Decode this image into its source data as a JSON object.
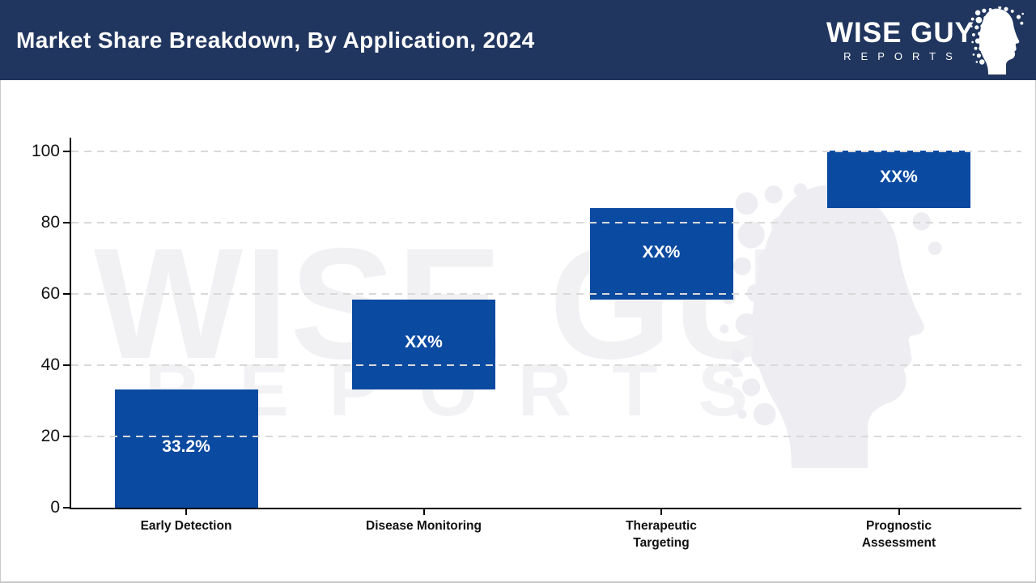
{
  "header": {
    "title": "Market Share Breakdown, By Application, 2024",
    "logo": {
      "line1": "WISE GUY",
      "line2": "REPORTS"
    }
  },
  "watermark": {
    "line1": "WISE GUY",
    "line2": "REPORTS"
  },
  "colors": {
    "header_bg": "#21365f",
    "bar": "#0b4aa1",
    "bar_label": "#ffffff",
    "gridline": "#d9d9d9",
    "watermark": "#f1f1f4",
    "axis": "#000000",
    "tick_text": "#111111"
  },
  "chart_data": {
    "type": "bar",
    "variant": "waterfall",
    "title": "Market Share Breakdown, By Application, 2024",
    "categories": [
      "Early Detection",
      "Disease Monitoring",
      "Therapeutic Targeting",
      "Prognostic Assessment"
    ],
    "category_label_lines": [
      [
        "Early Detection"
      ],
      [
        "Disease Monitoring"
      ],
      [
        "Therapeutic",
        "Targeting"
      ],
      [
        "Prognostic",
        "Assessment"
      ]
    ],
    "segments": [
      {
        "category": "Early Detection",
        "start": 0,
        "end": 33.2,
        "value": 33.2,
        "label": "33.2%"
      },
      {
        "category": "Disease Monitoring",
        "start": 33.2,
        "end": 58.4,
        "value": 25.2,
        "label": "XX%"
      },
      {
        "category": "Therapeutic Targeting",
        "start": 58.4,
        "end": 84.1,
        "value": 25.7,
        "label": "XX%"
      },
      {
        "category": "Prognostic Assessment",
        "start": 84.1,
        "end": 100.3,
        "value": 16.2,
        "label": "XX%"
      }
    ],
    "xlabel": "",
    "ylabel": "",
    "yticks": [
      0,
      20,
      40,
      60,
      80,
      100
    ],
    "ylim": [
      0,
      105
    ],
    "grid": "horizontal-dashed",
    "grid_on_top_of_bars": true,
    "legend": "none"
  }
}
